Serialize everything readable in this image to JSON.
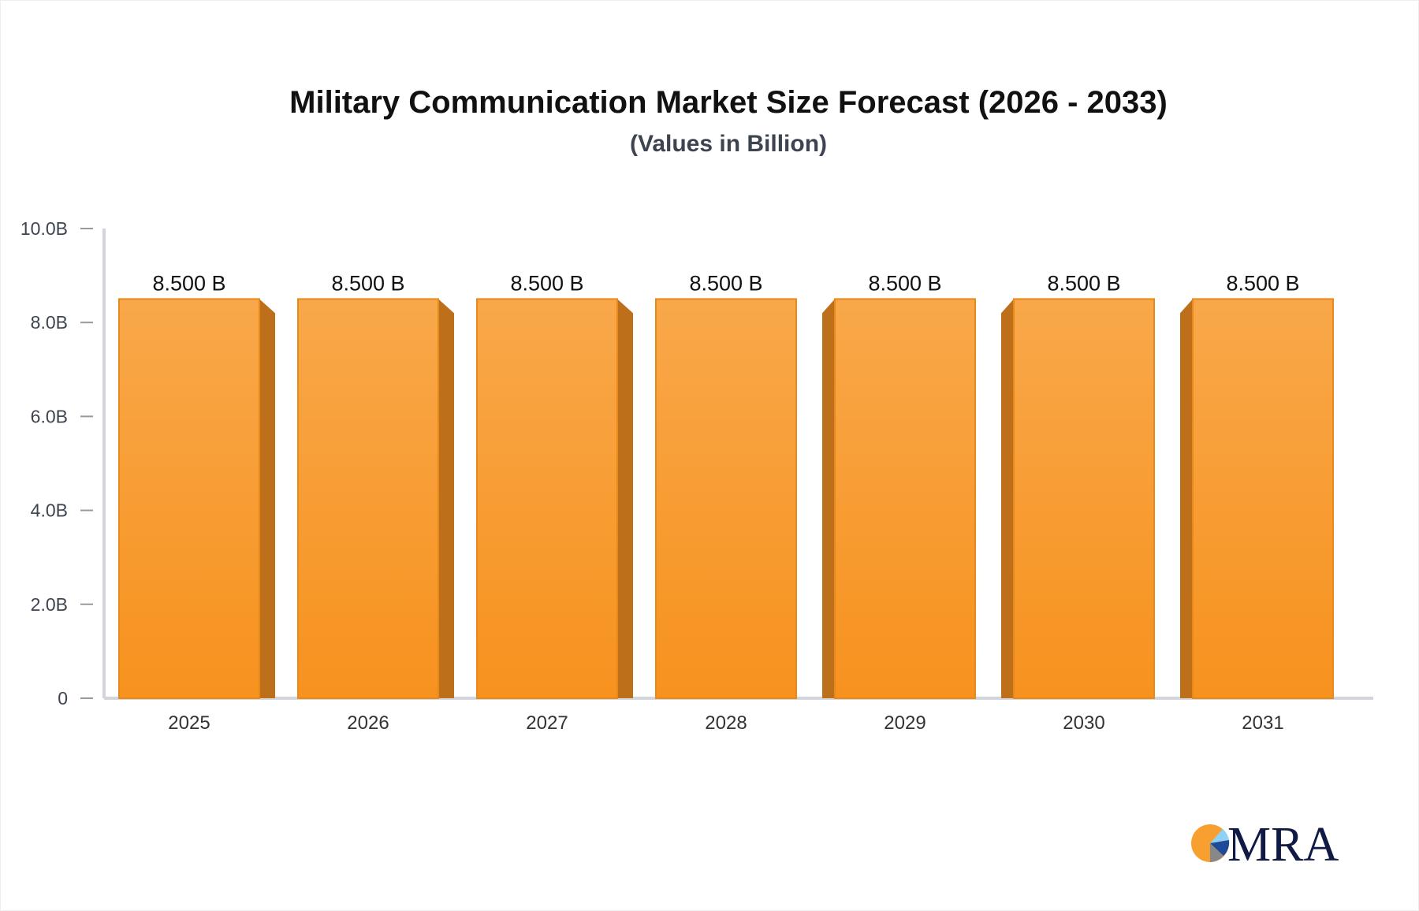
{
  "chart_data": {
    "type": "bar",
    "title": "Military Communication Market Size Forecast (2026 - 2033)",
    "subtitle": "(Values in Billion)",
    "categories": [
      "2025",
      "2026",
      "2027",
      "2028",
      "2029",
      "2030",
      "2031"
    ],
    "values": [
      8.5,
      8.5,
      8.5,
      8.5,
      8.5,
      8.5,
      8.5
    ],
    "data_labels": [
      "8.500 B",
      "8.500 B",
      "8.500 B",
      "8.500 B",
      "8.500 B",
      "8.500 B",
      "8.500 B"
    ],
    "ylim": [
      0,
      10
    ],
    "yticks": [
      0,
      2,
      4,
      6,
      8,
      10
    ],
    "ytick_labels": [
      "0",
      "2.0B",
      "4.0B",
      "6.0B",
      "8.0B",
      "10.0B"
    ],
    "xlabel": "",
    "ylabel": "",
    "grid": false,
    "colors": {
      "bar_top": "#f8a84a",
      "bar_bottom": "#f7921e",
      "bar_side": "#bd6f1a",
      "axis": "#d3d5dc"
    }
  },
  "logo": {
    "text": "MRA"
  }
}
